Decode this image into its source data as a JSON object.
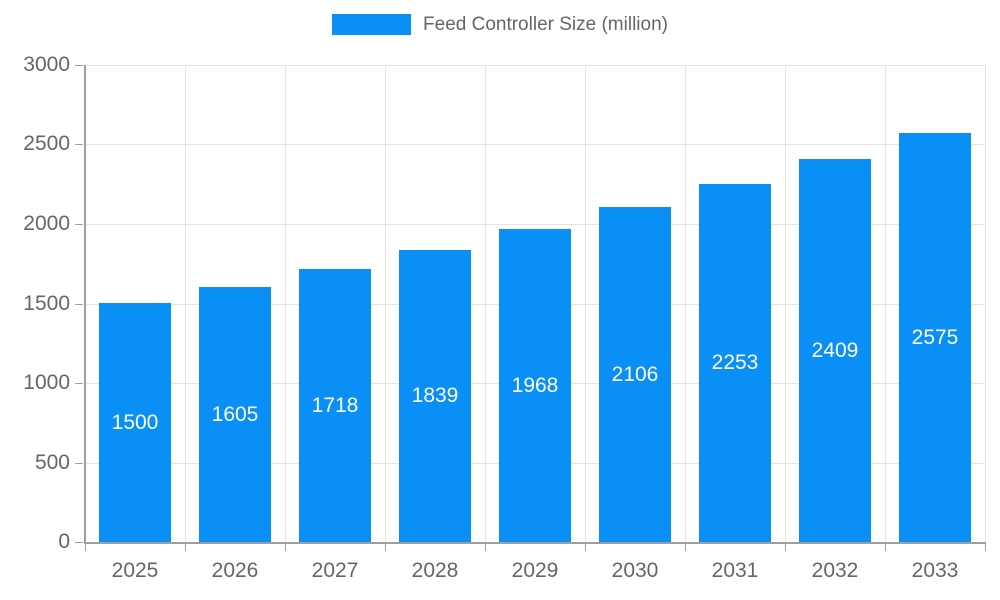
{
  "chart_data": {
    "type": "bar",
    "title": "Feed Controller Size (million)",
    "categories": [
      "2025",
      "2026",
      "2027",
      "2028",
      "2029",
      "2030",
      "2031",
      "2032",
      "2033"
    ],
    "series": [
      {
        "name": "Feed Controller Size (million)",
        "values": [
          1500,
          1605,
          1718,
          1839,
          1968,
          2106,
          2253,
          2409,
          2575
        ]
      }
    ],
    "xlabel": "",
    "ylabel": "",
    "ylim": [
      0,
      3000
    ],
    "yticks": [
      0,
      500,
      1000,
      1500,
      2000,
      2500,
      3000
    ],
    "grid": true,
    "legend_position": "top-center",
    "bar_labels_inside": true,
    "colors": {
      "bar": "#0a8ff7",
      "bar_value_text": "#ffffff",
      "axis_line": "#9e9e9e",
      "tick": "#9e9e9e",
      "gridline": "#e4e4e4",
      "axis_text": "#666666",
      "legend_text": "#666666",
      "background": "#ffffff"
    }
  }
}
